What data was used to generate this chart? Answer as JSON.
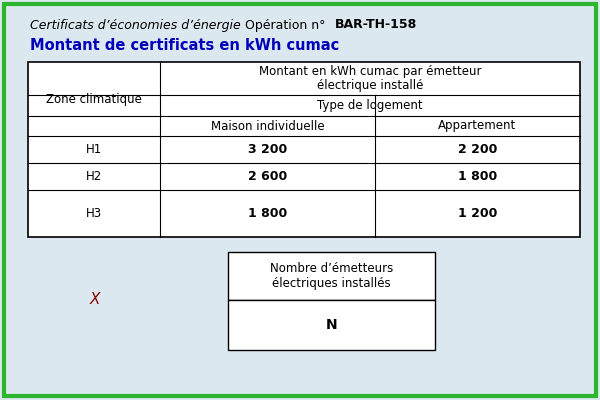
{
  "bg_color": "#dce8f0",
  "border_color": "#2db52d",
  "title_line1_normal": "Certificats d’économies d’énergie",
  "title_line1_sep": "   Opération n° ",
  "title_line1_bold": "BAR-TH-158",
  "title_line2": "Montant de certificats en kWh cumac",
  "header1": "Montant en kWh cumac par émetteur\nélectrique installé",
  "header2": "Type de logement",
  "col1": "Maison individuelle",
  "col2": "Appartement",
  "zone_label": "Zone climatique",
  "row_labels": [
    "H1",
    "H2",
    "H3"
  ],
  "col1_values": [
    "3 200",
    "2 600",
    "1 800"
  ],
  "col2_values": [
    "2 200",
    "1 800",
    "1 200"
  ],
  "formula_x": "X",
  "formula_label": "Nombre d’émetteurs\nélectriques installés",
  "formula_value": "N",
  "title_color": "#000000",
  "title2_color": "#0000bb",
  "x_color": "#8b0000",
  "table_bg": "#ffffff"
}
